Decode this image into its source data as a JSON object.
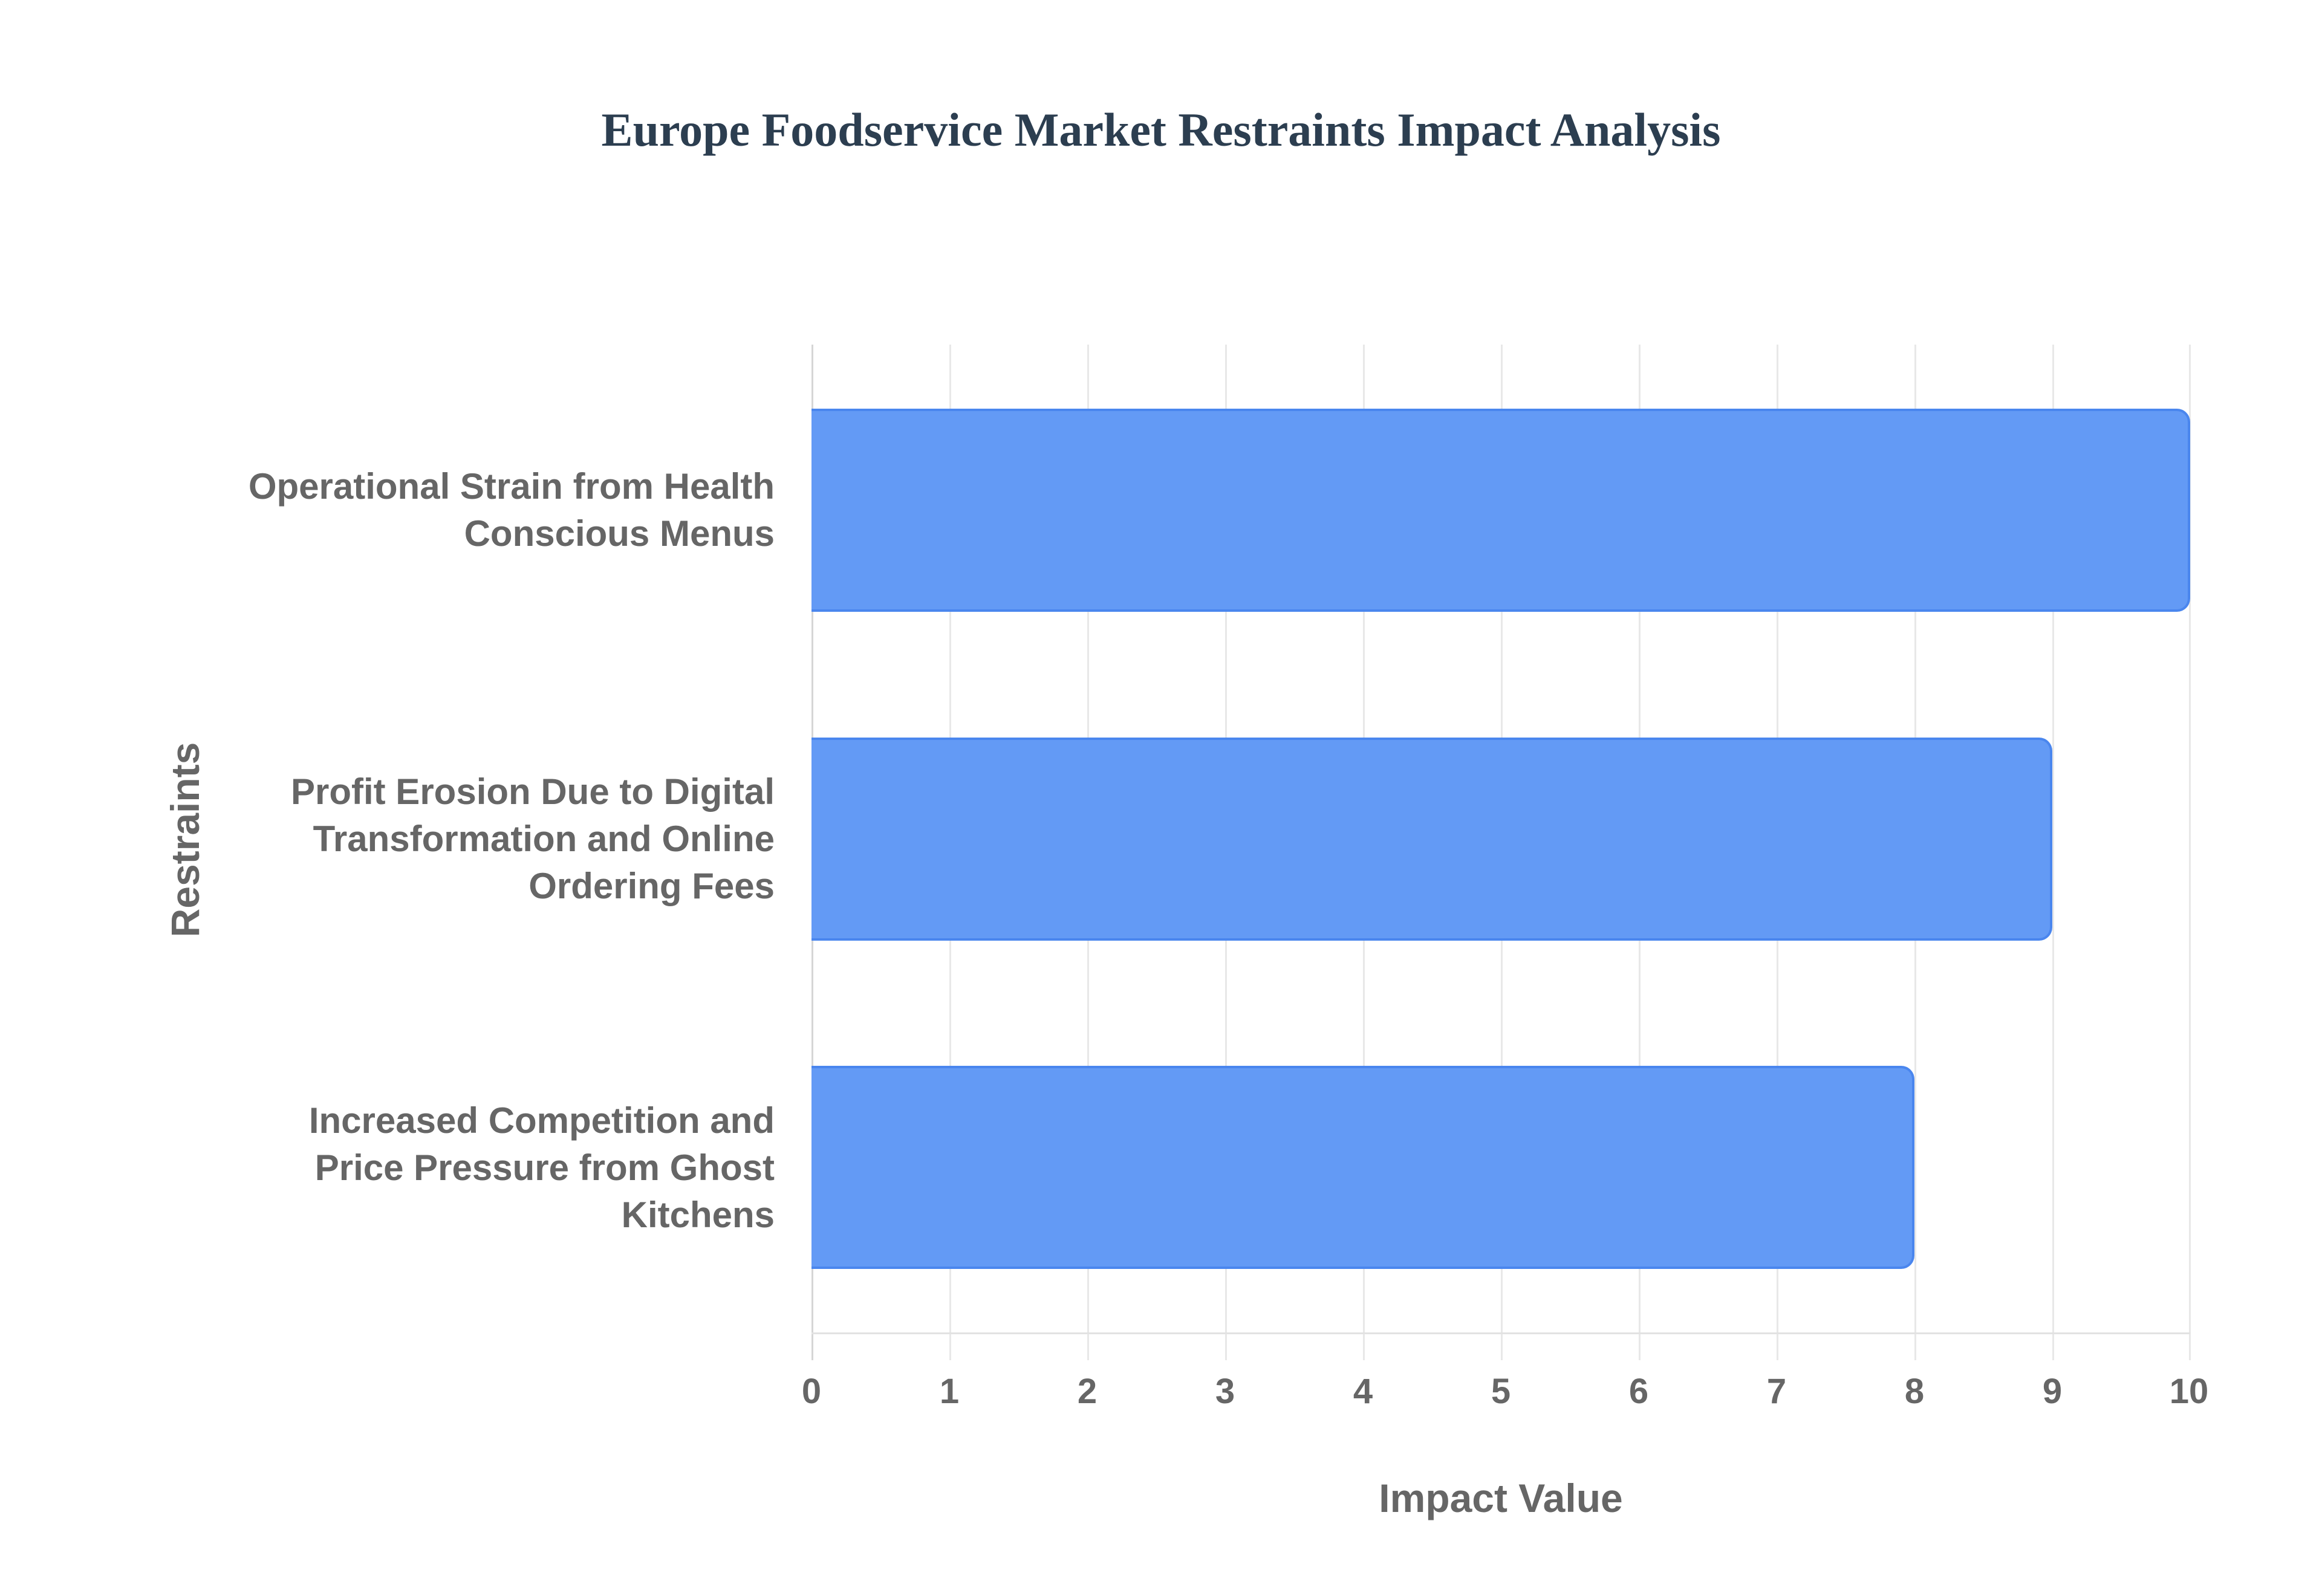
{
  "chart_data": {
    "type": "bar",
    "orientation": "horizontal",
    "title": "Europe Foodservice Market Restraints Impact Analysis",
    "xlabel": "Impact Value",
    "ylabel": "Restraints",
    "categories": [
      "Operational Strain from Health Conscious Menus",
      "Profit Erosion Due to Digital Transformation and Online Ordering Fees",
      "Increased Competition and Price Pressure from Ghost Kitchens"
    ],
    "values": [
      10,
      9,
      8
    ],
    "xlim": [
      0,
      10
    ],
    "xticks": [
      "0",
      "1",
      "2",
      "3",
      "4",
      "5",
      "6",
      "7",
      "8",
      "9",
      "10"
    ],
    "grid": true,
    "legend": null,
    "bar_color": "#639af5",
    "bar_border_color": "#4a86ee"
  },
  "labels": {
    "cat0_lines": [
      "Operational Strain from Health",
      "Conscious Menus"
    ],
    "cat1_lines": [
      "Profit Erosion Due to Digital",
      "Transformation and Online",
      "Ordering Fees"
    ],
    "cat2_lines": [
      "Increased Competition and",
      "Price Pressure from Ghost",
      "Kitchens"
    ]
  }
}
